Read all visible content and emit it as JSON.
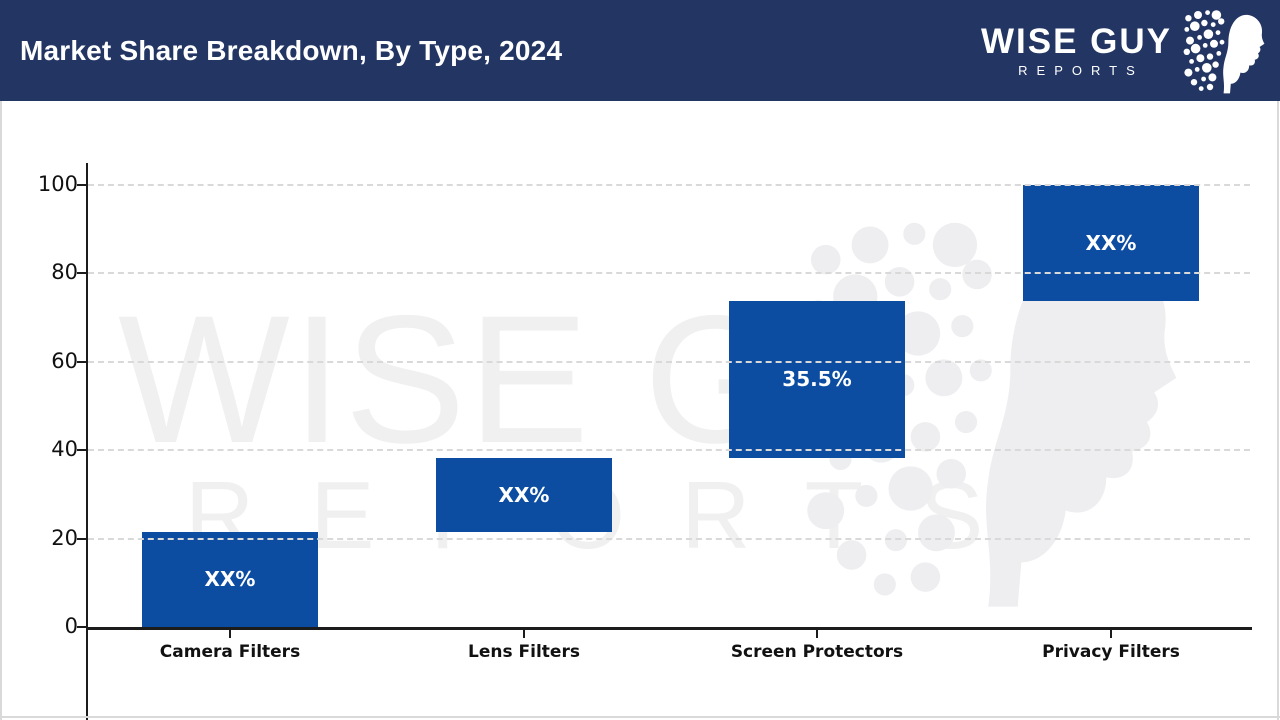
{
  "header": {
    "title": "Market Share Breakdown, By Type, 2024",
    "bg_color": "#233663",
    "logo": {
      "line1": "WISE GUY",
      "line2": "REPORTS"
    }
  },
  "watermark": {
    "line1": "WISE GU",
    "line2": "REPORTS"
  },
  "chart_data": {
    "type": "bar",
    "subtype": "waterfall",
    "title": "Market Share Breakdown, By Type, 2024",
    "categories": [
      "Camera Filters",
      "Lens Filters",
      "Screen Protectors",
      "Privacy Filters"
    ],
    "bars": [
      {
        "category": "Camera Filters",
        "start": 0,
        "end": 21.5,
        "value": 21.5,
        "label": "XX%"
      },
      {
        "category": "Lens Filters",
        "start": 21.5,
        "end": 38.2,
        "value": 16.7,
        "label": "XX%"
      },
      {
        "category": "Screen Protectors",
        "start": 38.2,
        "end": 73.7,
        "value": 35.5,
        "label": "35.5%"
      },
      {
        "category": "Privacy Filters",
        "start": 73.7,
        "end": 100,
        "value": 26.3,
        "label": "XX%"
      }
    ],
    "xlabel": "",
    "ylabel": "",
    "ylim": [
      0,
      105
    ],
    "yticks": [
      0,
      20,
      40,
      60,
      80,
      100
    ],
    "bar_color": "#0c4da1",
    "bar_label_color": "#ffffff",
    "grid": "horizontal-dashed",
    "grid_color": "#d9d9d9",
    "legend": "none"
  }
}
